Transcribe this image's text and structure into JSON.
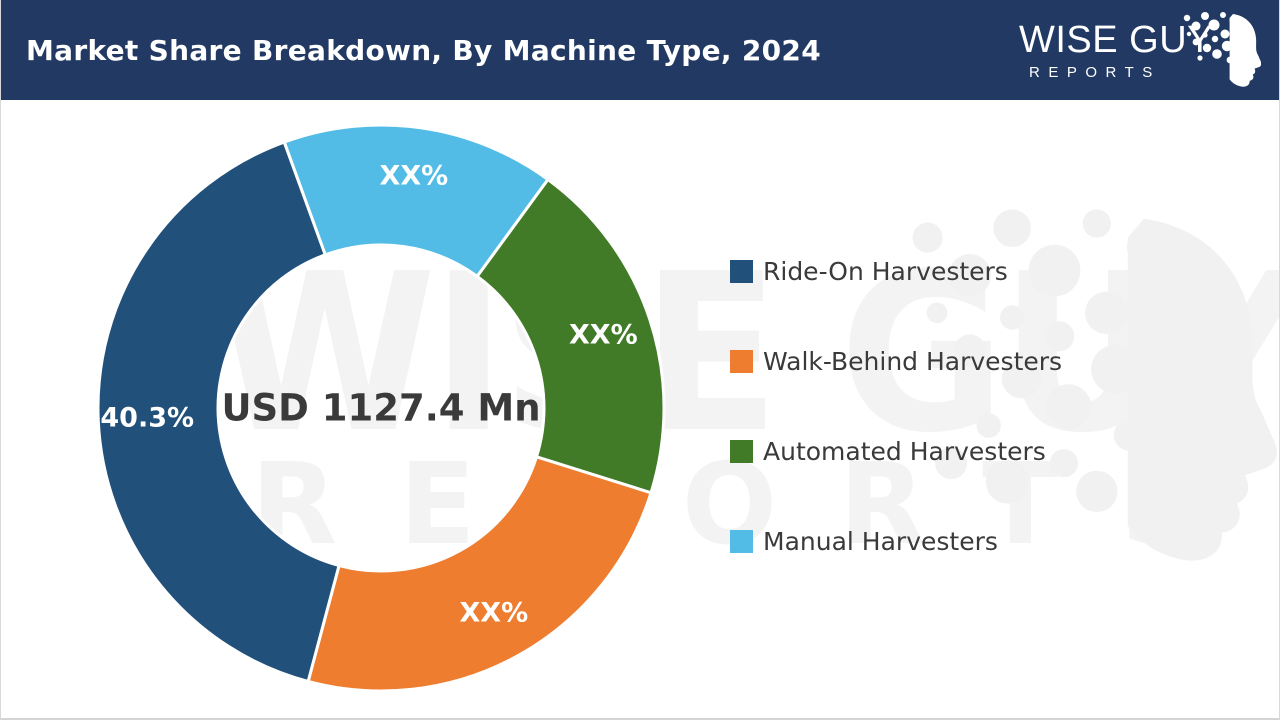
{
  "header": {
    "title": "Market Share Breakdown, By Machine Type, 2024",
    "logo": {
      "line1": "WISE GUY",
      "line2": "REPORTS"
    }
  },
  "chart_data": {
    "type": "pie",
    "variant": "donut",
    "title": "Market Share Breakdown, By Machine Type, 2024",
    "center_label": "USD 1127.4 Mn",
    "start_angle_deg": 340,
    "direction": "clockwise",
    "inner_radius_ratio": 0.575,
    "legend_position": "right",
    "segments": [
      {
        "name": "Manual Harvesters",
        "value_pct": 15.6,
        "display_label": "XX%",
        "color": "#53BCE6"
      },
      {
        "name": "Automated Harvesters",
        "value_pct": 19.8,
        "display_label": "XX%",
        "color": "#417B28"
      },
      {
        "name": "Walk-Behind Harvesters",
        "value_pct": 24.3,
        "display_label": "XX%",
        "color": "#EE7D2F"
      },
      {
        "name": "Ride-On Harvesters",
        "value_pct": 40.3,
        "display_label": "40.3%",
        "color": "#21507A"
      }
    ]
  },
  "legend": {
    "items": [
      {
        "label": "Ride-On Harvesters",
        "color": "#21507A"
      },
      {
        "label": "Walk-Behind Harvesters",
        "color": "#EE7D2F"
      },
      {
        "label": "Automated Harvesters",
        "color": "#417B28"
      },
      {
        "label": "Manual Harvesters",
        "color": "#53BCE6"
      }
    ]
  },
  "watermark": {
    "line1": "WISE GUY",
    "line2": "REPORTS"
  },
  "colors": {
    "header_bg": "#223A63",
    "text_dark": "#3A3A3A",
    "page_border": "#D9D9D9",
    "watermark": "#F3F3F3"
  }
}
